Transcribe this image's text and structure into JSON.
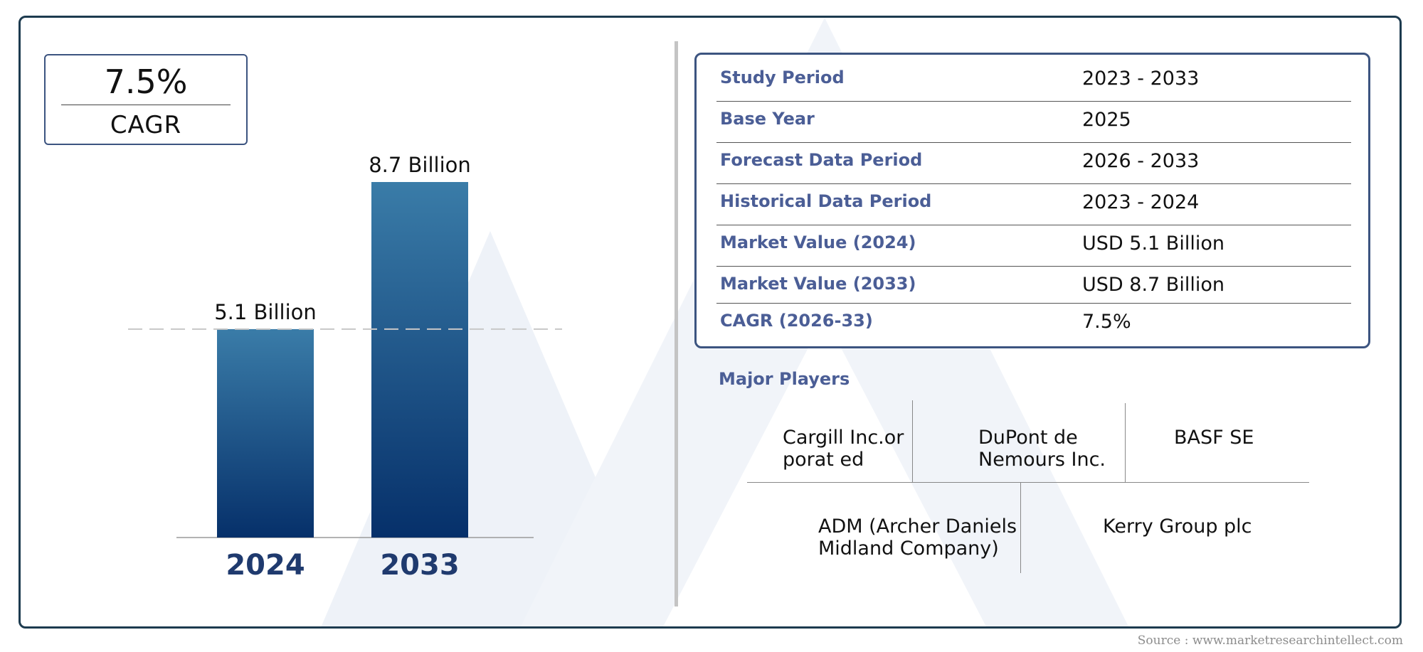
{
  "cagr_card": {
    "value": "7.5%",
    "label": "CAGR"
  },
  "chart_data": {
    "type": "bar",
    "categories": [
      "2024",
      "2033"
    ],
    "values": [
      5.1,
      8.7
    ],
    "data_labels": [
      "5.1 Billion",
      "8.7 Billion"
    ],
    "unit": "Billion",
    "reference_line": 5.1,
    "bar_gradient": [
      "#3a7ca8",
      "#06306a"
    ],
    "tick_label_color": "#1f3a6e"
  },
  "summary_table": [
    {
      "key": "Study Period",
      "value": "2023 - 2033"
    },
    {
      "key": "Base Year",
      "value": "2025"
    },
    {
      "key": "Forecast Data Period",
      "value": "2026 - 2033"
    },
    {
      "key": "Historical Data Period",
      "value": "2023 - 2024"
    },
    {
      "key": "Market Value (2024)",
      "value": "USD 5.1 Billion"
    },
    {
      "key": "Market Value (2033)",
      "value": "USD 8.7 Billion"
    },
    {
      "key": "CAGR (2026-33)",
      "value": "7.5%"
    }
  ],
  "major_players": {
    "title": "Major Players",
    "row1": [
      "Cargill Inc.orporat ed",
      "DuPont de Nemours Inc.",
      "BASF SE"
    ],
    "row2": [
      "ADM (Archer Daniels Midland Company)",
      "Kerry Group plc"
    ]
  },
  "source": "Source : www.marketresearchintellect.com",
  "colors": {
    "accent": "#4b5e96",
    "border": "#3c5480",
    "frame": "#1d3b4f"
  }
}
